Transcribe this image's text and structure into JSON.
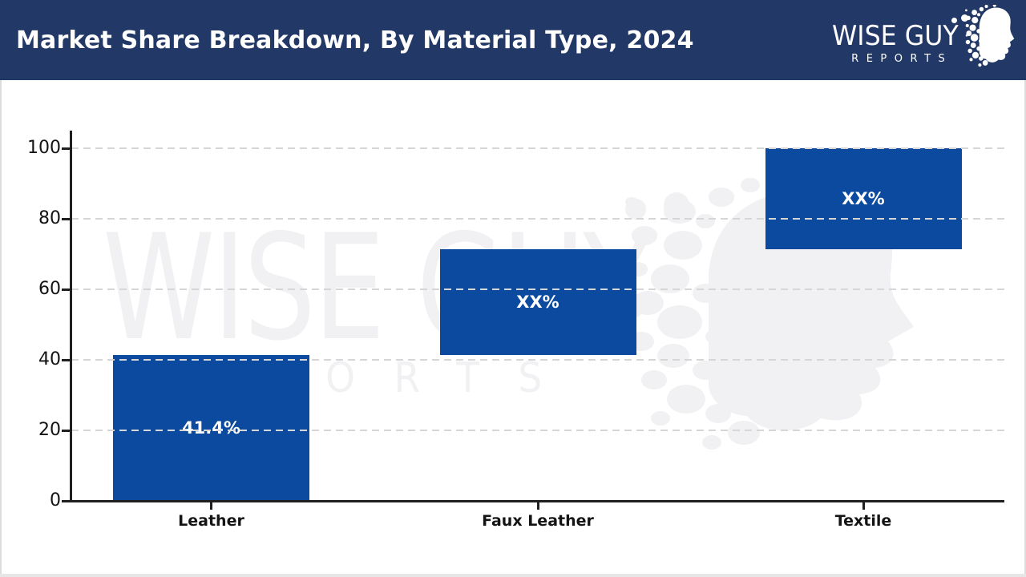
{
  "header": {
    "title": "Market Share Breakdown, By Material Type, 2024",
    "logo": {
      "line1": "WISE GUY",
      "line2": "REPORTS"
    }
  },
  "watermark": {
    "line1": "WISE GUY",
    "line2": "REPORTS"
  },
  "chart_data": {
    "type": "bar",
    "subtype": "stacked-waterfall-breakdown",
    "title": "Market Share Breakdown, By Material Type, 2024",
    "categories": [
      "Leather",
      "Faux Leather",
      "Textile"
    ],
    "bars": [
      {
        "category": "Leather",
        "start": 0,
        "end": 41.4,
        "label": "41.4%"
      },
      {
        "category": "Faux Leather",
        "start": 41.4,
        "end": 71.4,
        "label": "XX%"
      },
      {
        "category": "Textile",
        "start": 71.4,
        "end": 100,
        "label": "XX%"
      }
    ],
    "xlabel": "",
    "ylabel": "",
    "ylim": [
      0,
      100
    ],
    "yticks": [
      0,
      20,
      40,
      60,
      80,
      100
    ],
    "grid": "horizontal-dashed",
    "legend": "none",
    "bar_color": "#0b4a9e",
    "bar_label_color": "#ffffff"
  },
  "colors": {
    "header_bg": "#223866",
    "title_text": "#ffffff",
    "bar": "#0b4a9e",
    "grid": "#d6d6d6",
    "axis": "#1f1f1f",
    "watermark": "#f1f1f3"
  }
}
